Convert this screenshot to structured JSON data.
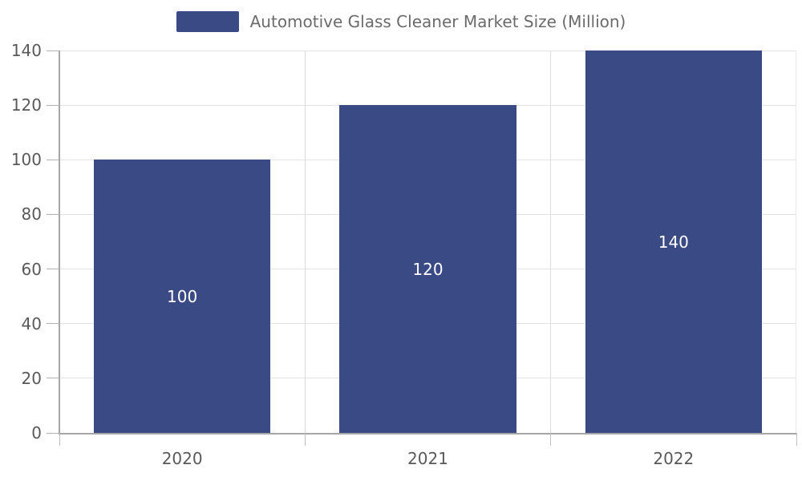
{
  "legend": {
    "label": "Automotive Glass Cleaner Market Size (Million)"
  },
  "chart_data": {
    "type": "bar",
    "title": "Automotive Glass Cleaner Market Size (Million)",
    "categories": [
      "2020",
      "2021",
      "2022"
    ],
    "values": [
      100,
      120,
      140
    ],
    "series": [
      {
        "name": "Automotive Glass Cleaner Market Size (Million)",
        "values": [
          100,
          120,
          140
        ]
      }
    ],
    "value_labels": [
      "100",
      "120",
      "140"
    ],
    "xlabel": "",
    "ylabel": "",
    "ylim": [
      0,
      140
    ],
    "yticks": [
      0,
      20,
      40,
      60,
      80,
      100,
      120,
      140
    ],
    "grid": true,
    "legend_position": "top-center",
    "value_label_position": "inside-center"
  },
  "colors": {
    "bar": "#3A4A84",
    "value_label": "#FFFFFF",
    "axis_line": "#A6A6A6",
    "gridline": "#E3E3E3",
    "tick_label": "#595959",
    "legend_text": "#6B6B6B",
    "background": "#FFFFFF"
  }
}
